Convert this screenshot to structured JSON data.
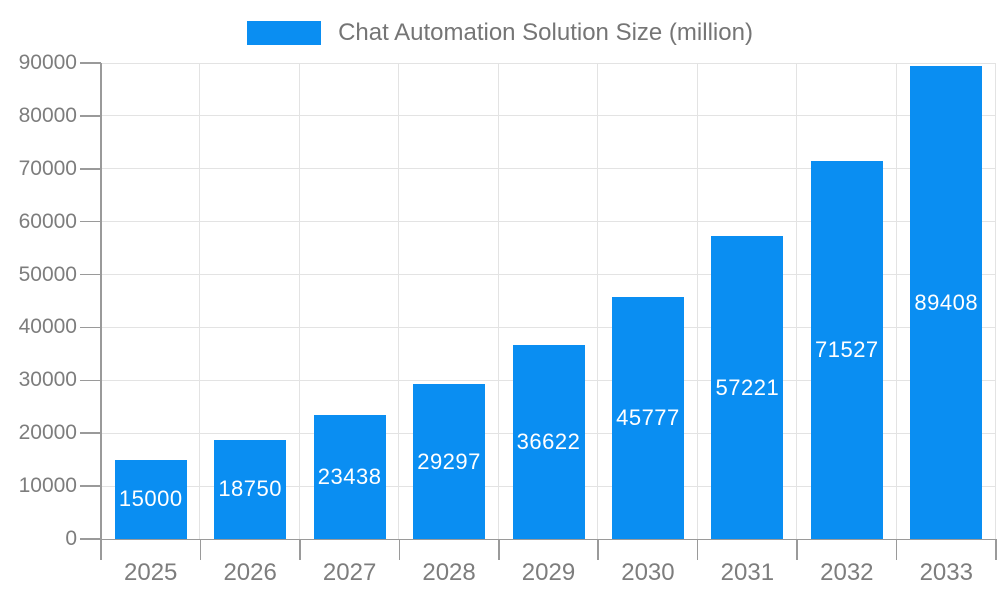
{
  "chart_data": {
    "type": "bar",
    "legend": "Chat Automation Solution Size (million)",
    "legend_position": "top-center",
    "categories": [
      "2025",
      "2026",
      "2027",
      "2028",
      "2029",
      "2030",
      "2031",
      "2032",
      "2033"
    ],
    "values": [
      15000,
      18750,
      23438,
      29297,
      36622,
      45777,
      57221,
      71527,
      89408
    ],
    "value_labels": [
      "15000",
      "18750",
      "23438",
      "29297",
      "36622",
      "45777",
      "57221",
      "71527",
      "89408"
    ],
    "value_label_style": "inside-center-white",
    "xlabel": "",
    "ylabel": "",
    "ylim": [
      0,
      90000
    ],
    "ytick_step": 10000,
    "yticklabels": [
      "0",
      "10000",
      "20000",
      "30000",
      "40000",
      "50000",
      "60000",
      "70000",
      "80000",
      "90000"
    ],
    "grid": true
  },
  "colors": {
    "bar": "#0a8ef2",
    "grid": "#e3e3e3",
    "axis": "#9a9a9a",
    "tick_text": "#7d7d7d",
    "legend_text": "#757575",
    "bar_value_text": "#ffffff",
    "background": "#ffffff"
  }
}
